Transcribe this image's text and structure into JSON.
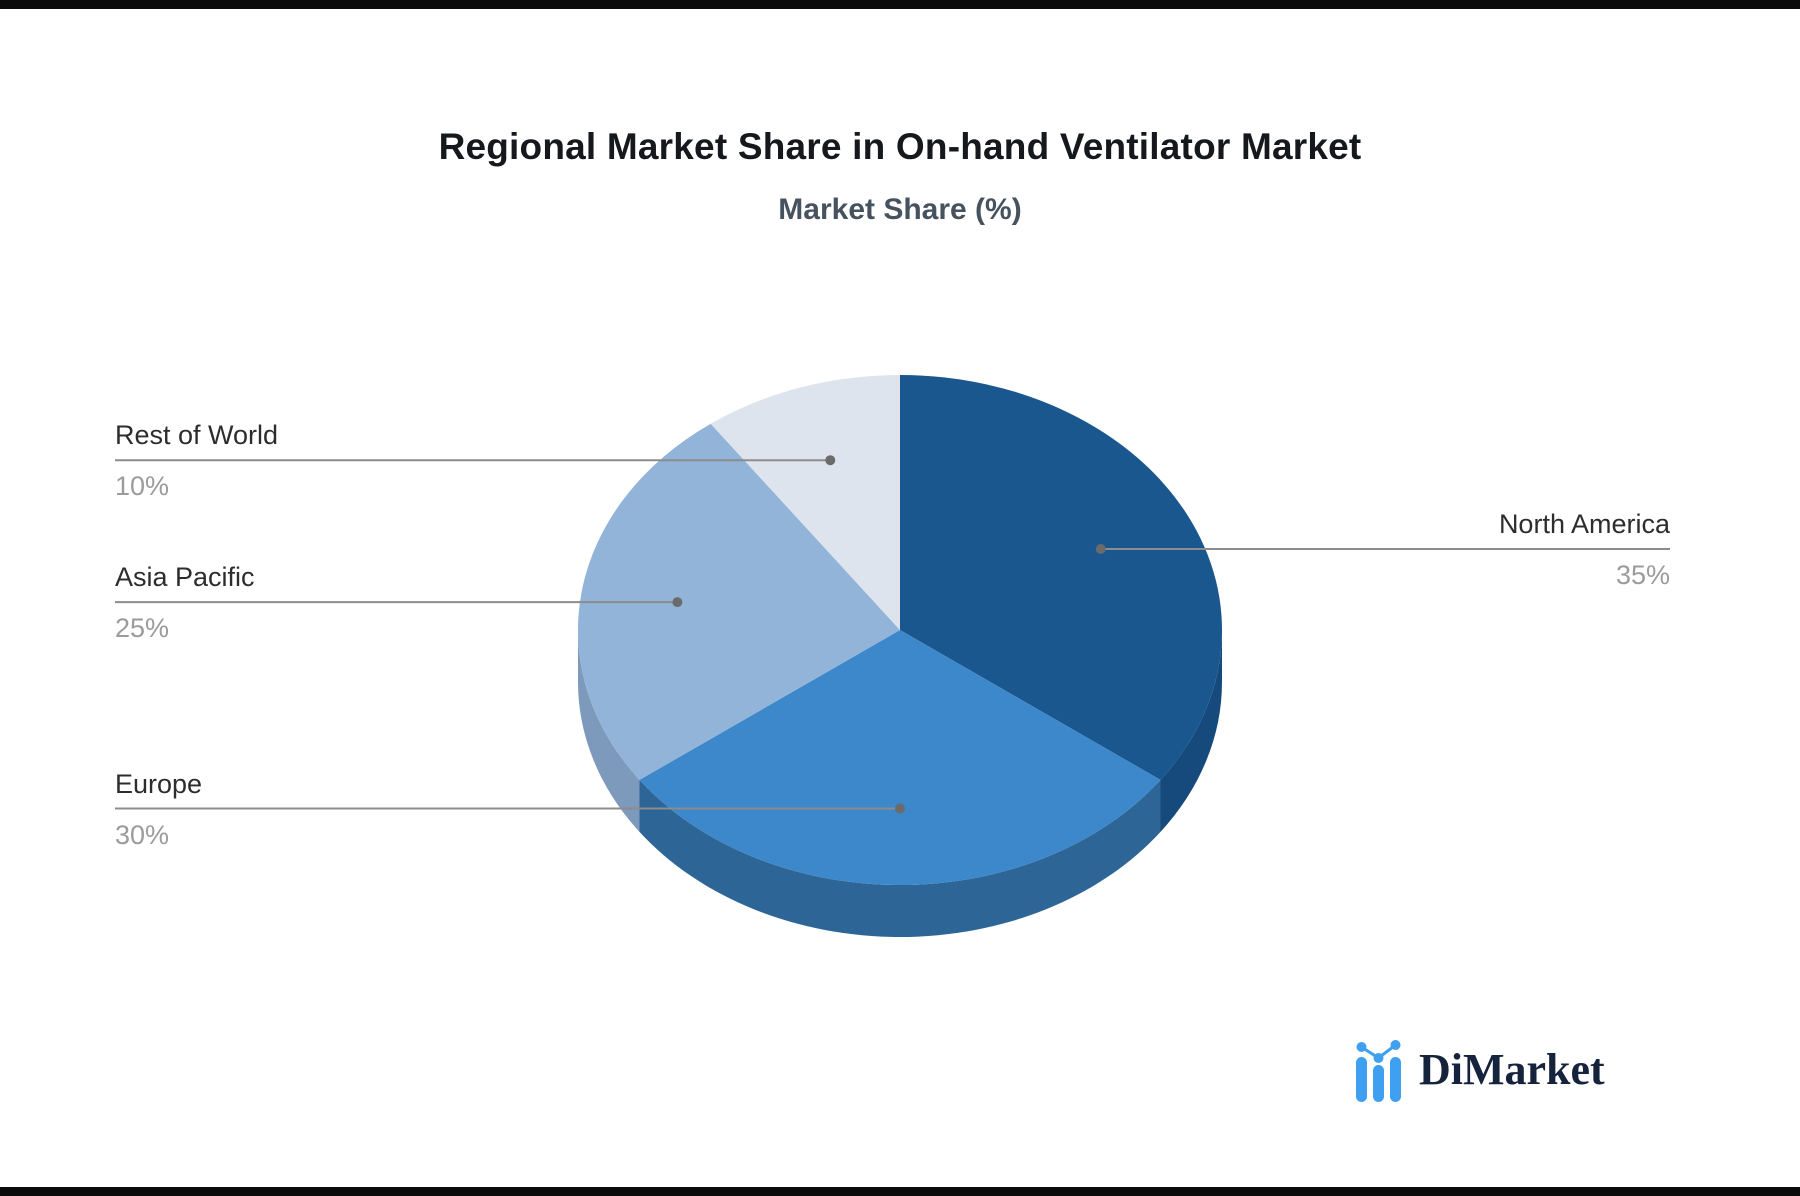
{
  "chart_data": {
    "type": "pie",
    "style_3d": true,
    "title": "Regional Market Share in On-hand Ventilator Market",
    "subtitle": "Market Share (%)",
    "direction": "clockwise",
    "start_angle_deg": 90,
    "legend_position": "callout-labels",
    "slices": [
      {
        "label": "North America",
        "value": 35,
        "display": "35%",
        "color": "#1a578e",
        "rim_color": "#164a7c",
        "side": "right"
      },
      {
        "label": "Europe",
        "value": 30,
        "display": "30%",
        "color": "#3c88ca",
        "rim_color": "#2d6696",
        "side": "left"
      },
      {
        "label": "Asia Pacific",
        "value": 25,
        "display": "25%",
        "color": "#92b4d8",
        "rim_color": "#7d99bb",
        "side": "left"
      },
      {
        "label": "Rest of World",
        "value": 10,
        "display": "10%",
        "color": "#dee4ee",
        "side": "left"
      }
    ],
    "callout_line_color": "#8c8c8c",
    "callout_dot_color": "#6b6b6b",
    "label_color": "#2d2d2d",
    "value_color": "#9b9b9b",
    "title_color": "#15181c",
    "subtitle_color": "#47525f"
  },
  "branding": {
    "name": "DiMarket",
    "icon": "bar-line-chart-icon",
    "icon_color": "#3f9ff0",
    "text_color": "#16233c"
  }
}
